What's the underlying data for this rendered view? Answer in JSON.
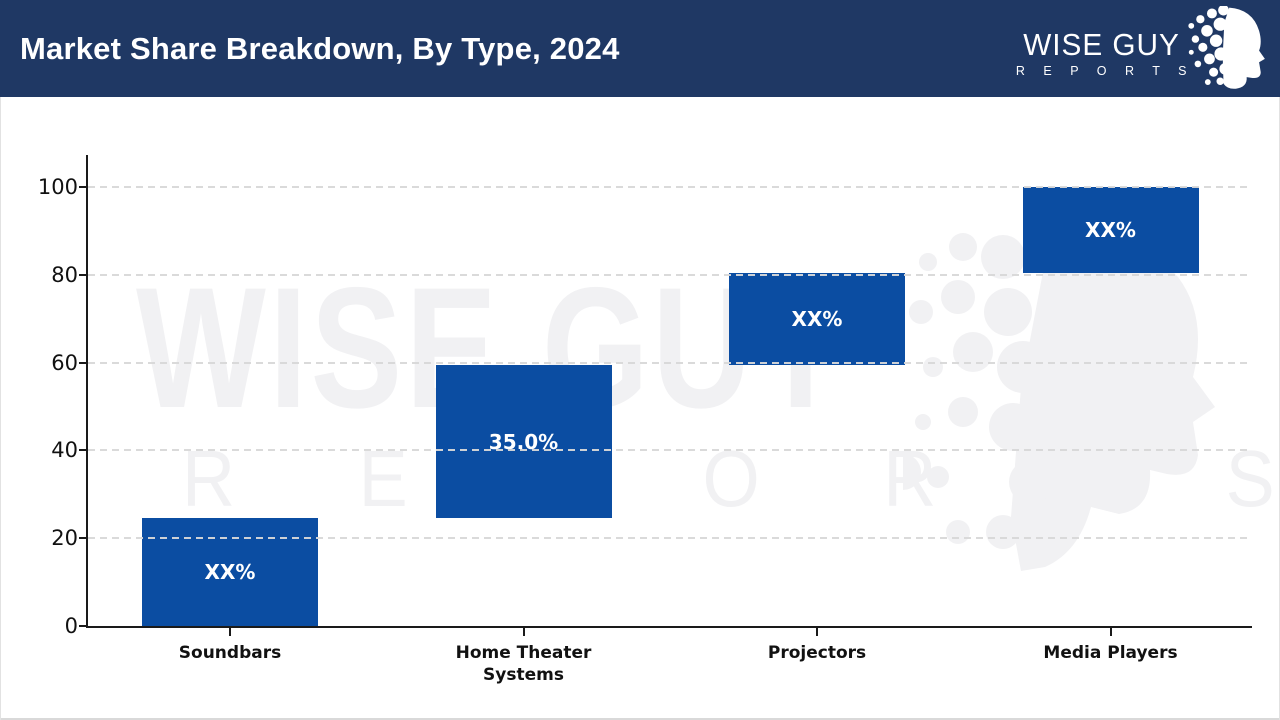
{
  "header": {
    "title": "Market Share Breakdown, By Type, 2024",
    "logo": {
      "name": "WISE GUY",
      "subname": "R E P O R T S",
      "icon": "dotted-head-profile-icon"
    }
  },
  "watermark": {
    "line1": "WISE GUY",
    "line2": "R E P O R T S",
    "icon": "dotted-head-profile-watermark"
  },
  "colors": {
    "header_bg": "#1f3864",
    "bar": "#0b4da2",
    "bar_label": "#ffffff",
    "axis": "#1a1a1a",
    "grid": "#d8d8d8",
    "watermark": "#f1f1f3",
    "page_bg": "#ffffff",
    "tick_label": "#111111"
  },
  "chart_data": {
    "type": "bar",
    "variant": "waterfall",
    "title": "Market Share Breakdown, By Type, 2024",
    "categories": [
      "Soundbars",
      "Home Theater Systems",
      "Projectors",
      "Media Players"
    ],
    "segments": [
      {
        "category": "Soundbars",
        "start": 0,
        "end": 24.5,
        "label": "XX%"
      },
      {
        "category": "Home Theater Systems",
        "start": 24.5,
        "end": 59.5,
        "label": "35.0%"
      },
      {
        "category": "Projectors",
        "start": 59.5,
        "end": 80.5,
        "label": "XX%"
      },
      {
        "category": "Media Players",
        "start": 80.5,
        "end": 100,
        "label": "XX%"
      }
    ],
    "xlabel": "",
    "ylabel": "",
    "yticks": [
      0,
      20,
      40,
      60,
      80,
      100
    ],
    "ylim": [
      0,
      107
    ],
    "grid": "horizontal-dashed-over-bars",
    "legend": "none"
  }
}
